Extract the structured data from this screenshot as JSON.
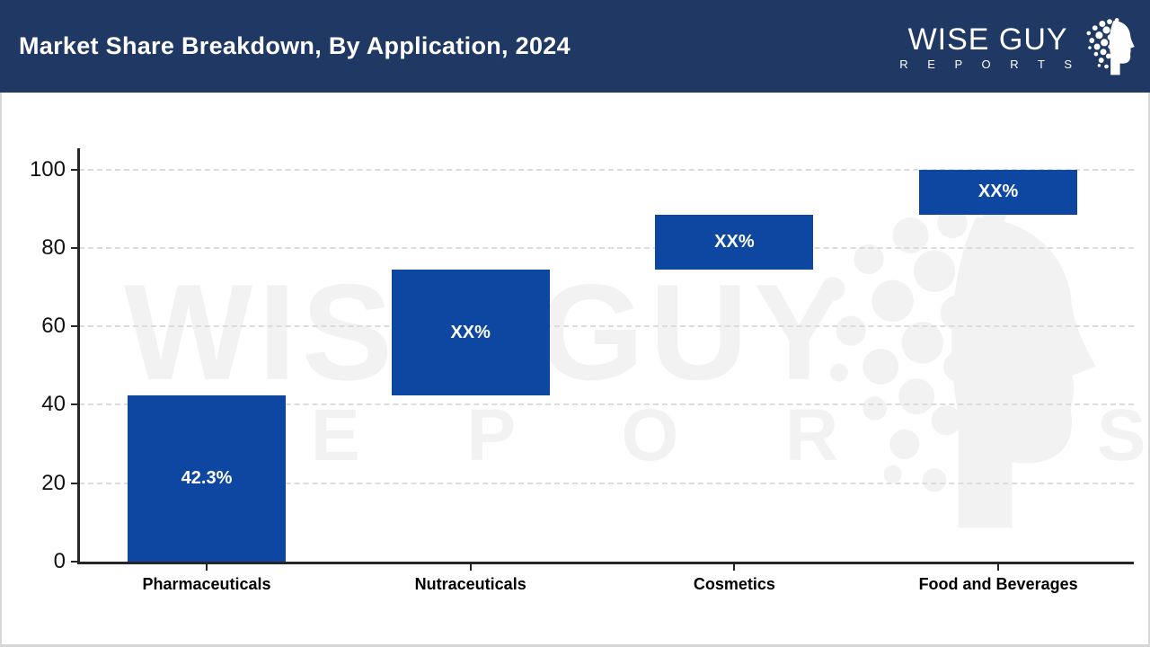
{
  "header": {
    "title": "Market Share Breakdown, By Application, 2024",
    "logo": {
      "line1": "WISE GUY",
      "line2": "R E P O R T S"
    }
  },
  "watermark": {
    "line1": "WISE GUY",
    "line2": "R E P O R T S"
  },
  "colors": {
    "header_bg": "#1f3864",
    "bar": "#0d47a1",
    "bar_label_text": "#ffffff",
    "grid": "#dcdcdc",
    "axis": "#262626",
    "watermark": "#f2f2f2",
    "title_text": "#ffffff"
  },
  "chart_data": {
    "type": "bar",
    "subtype": "waterfall",
    "title": "Market Share Breakdown, By Application, 2024",
    "categories": [
      "Pharmaceuticals",
      "Nutraceuticals",
      "Cosmetics",
      "Food and Beverages"
    ],
    "segments": [
      {
        "category": "Pharmaceuticals",
        "start": 0,
        "end": 42.3,
        "label": "42.3%"
      },
      {
        "category": "Nutraceuticals",
        "start": 42.3,
        "end": 74.5,
        "label": "XX%"
      },
      {
        "category": "Cosmetics",
        "start": 74.5,
        "end": 88.5,
        "label": "XX%"
      },
      {
        "category": "Food and Beverages",
        "start": 88.5,
        "end": 100,
        "label": "XX%"
      }
    ],
    "xlabel": "",
    "ylabel": "",
    "ylim": [
      0,
      100
    ],
    "yticks": [
      0,
      20,
      40,
      60,
      80,
      100
    ],
    "grid": "horizontal dashed",
    "legend": "none",
    "bar_color": "#0d47a1"
  }
}
